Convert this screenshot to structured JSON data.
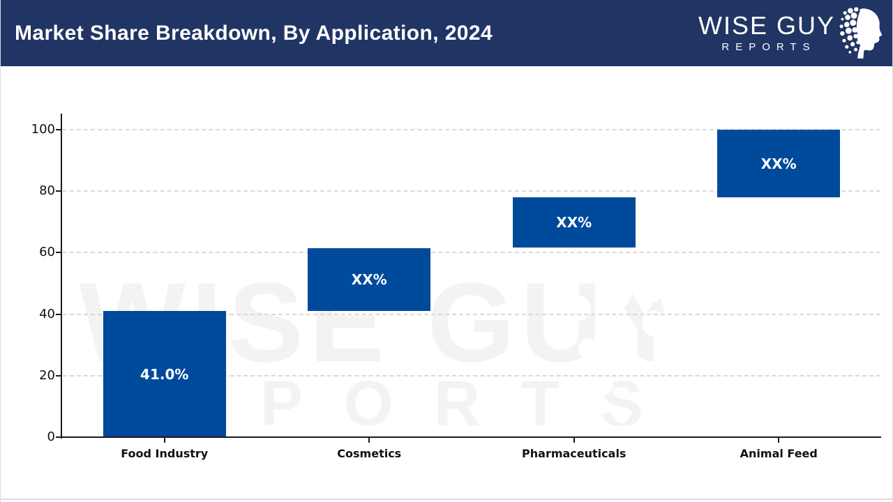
{
  "header": {
    "title": "Market Share Breakdown, By Application, 2024",
    "logo": {
      "line1": "WISE GUY",
      "line2": "REPORTS"
    }
  },
  "watermark": {
    "line1": "WISE GUY",
    "line2": "PORTS"
  },
  "chart_data": {
    "type": "bar",
    "subtype": "waterfall",
    "title": "Market Share Breakdown, By Application, 2024",
    "categories": [
      "Food Industry",
      "Cosmetics",
      "Pharmaceuticals",
      "Animal Feed"
    ],
    "segments": [
      {
        "category": "Food Industry",
        "start": 0,
        "end": 41,
        "label": "41.0%"
      },
      {
        "category": "Cosmetics",
        "start": 41,
        "end": 61.5,
        "label": "XX%"
      },
      {
        "category": "Pharmaceuticals",
        "start": 61.7,
        "end": 78,
        "label": "XX%"
      },
      {
        "category": "Animal Feed",
        "start": 78,
        "end": 100,
        "label": "XX%"
      }
    ],
    "xlabel": "",
    "ylabel": "",
    "ylim": [
      0,
      100
    ],
    "yticks": [
      0,
      20,
      40,
      60,
      80,
      100
    ],
    "grid": "horizontal-dashed",
    "legend": "none",
    "bar_color": "#004a9b",
    "bar_label_color": "#ffffff"
  },
  "colors": {
    "header_bg": "#213564",
    "bar": "#004a9b",
    "axis": "#1a1a1a",
    "grid": "#d8d8d8",
    "watermark": "#f3f3f3",
    "page_bg": "#ffffff"
  }
}
